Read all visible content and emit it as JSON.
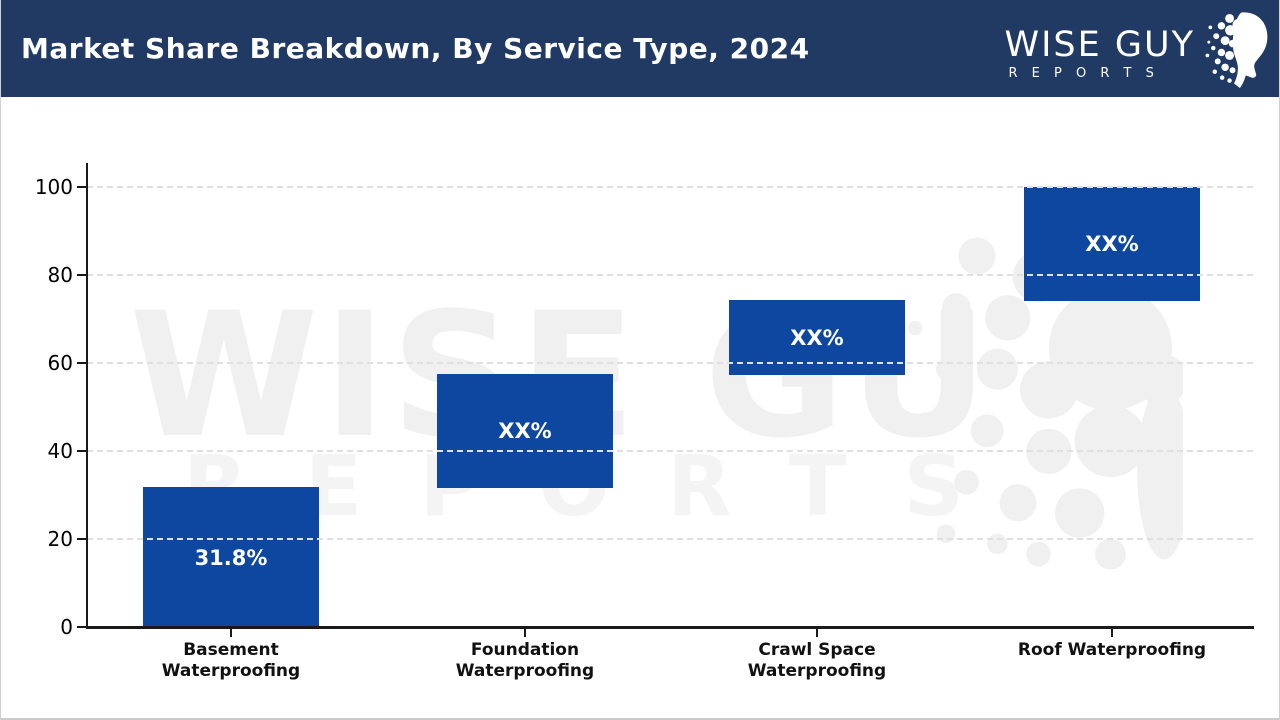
{
  "header": {
    "title": "Market Share Breakdown, By Service Type, 2024",
    "logo_primary": "WISE GUY",
    "logo_secondary": "R E P O R T S"
  },
  "watermark": {
    "primary": "WISE GU",
    "secondary": "R E P O R T S"
  },
  "chart_data": {
    "type": "bar",
    "subtype": "waterfall",
    "title": "Market Share Breakdown, By Service Type, 2024",
    "categories": [
      "Basement Waterproofing",
      "Foundation Waterproofing",
      "Crawl Space Waterproofing",
      "Roof Waterproofing"
    ],
    "category_label_lines": [
      [
        "Basement",
        "Waterproofing"
      ],
      [
        "Foundation",
        "Waterproofing"
      ],
      [
        "Crawl Space",
        "Waterproofing"
      ],
      [
        "Roof Waterproofing"
      ]
    ],
    "segments": [
      {
        "category": "Basement Waterproofing",
        "start": 0,
        "end": 31.8,
        "label": "31.8%"
      },
      {
        "category": "Foundation Waterproofing",
        "start": 31.8,
        "end": 57.5,
        "label": "XX%"
      },
      {
        "category": "Crawl Space Waterproofing",
        "start": 57.5,
        "end": 74.3,
        "label": "XX%"
      },
      {
        "category": "Roof Waterproofing",
        "start": 74.3,
        "end": 100,
        "label": "XX%"
      }
    ],
    "yticks": [
      0,
      20,
      40,
      60,
      80,
      100
    ],
    "ylim": [
      0,
      105
    ],
    "xlabel": "",
    "ylabel": "",
    "grid": "horizontal-dashed",
    "legend": "none",
    "bar_color": "#0d479f",
    "bar_label_color": "#ffffff",
    "axis_color": "#1a1a1a",
    "grid_color": "#e0e0e0"
  },
  "colors": {
    "header_bg": "#213a64",
    "bar_blue": "#0d479f",
    "watermark_gray": "#f0f0f0",
    "bottom_border": "#c9c9c9"
  }
}
